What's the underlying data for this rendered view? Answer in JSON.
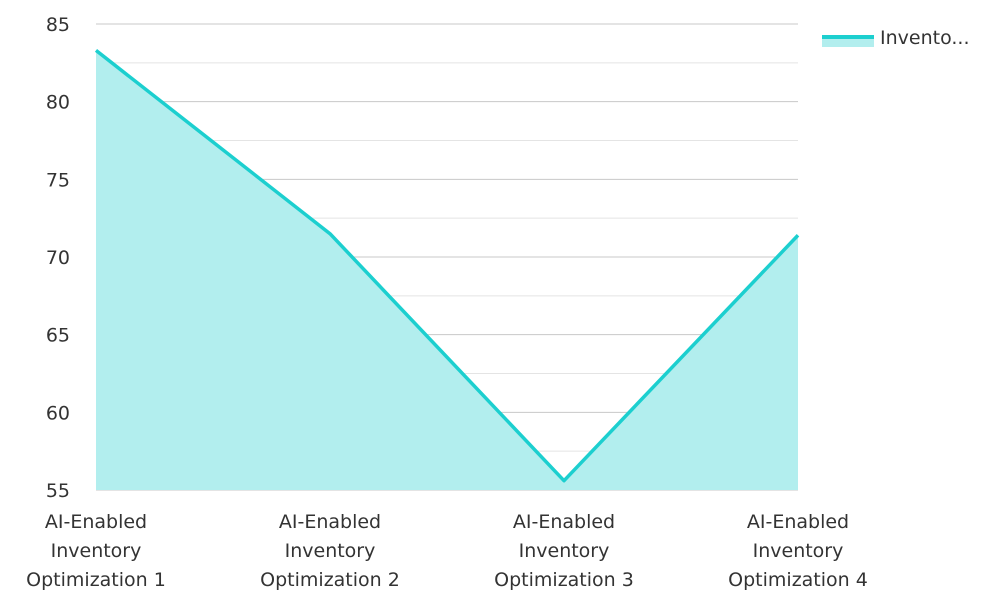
{
  "chart_data": {
    "type": "area",
    "categories": [
      [
        "AI-Enabled",
        "Inventory",
        "Optimization 1"
      ],
      [
        "AI-Enabled",
        "Inventory",
        "Optimization 2"
      ],
      [
        "AI-Enabled",
        "Inventory",
        "Optimization 3"
      ],
      [
        "AI-Enabled",
        "Inventory",
        "Optimization 4"
      ]
    ],
    "series": [
      {
        "name": "Invento...",
        "values": [
          83.3,
          71.5,
          55.6,
          71.4
        ]
      }
    ],
    "ylim": [
      55,
      85
    ],
    "yticks": [
      55,
      60,
      65,
      70,
      75,
      80,
      85
    ],
    "minor_grid_step": 2.5,
    "grid": true,
    "legend": "top-right",
    "colors": {
      "line": "#1ccfcf",
      "fill": "#b2eeee",
      "grid": "#c8c8c8"
    }
  }
}
